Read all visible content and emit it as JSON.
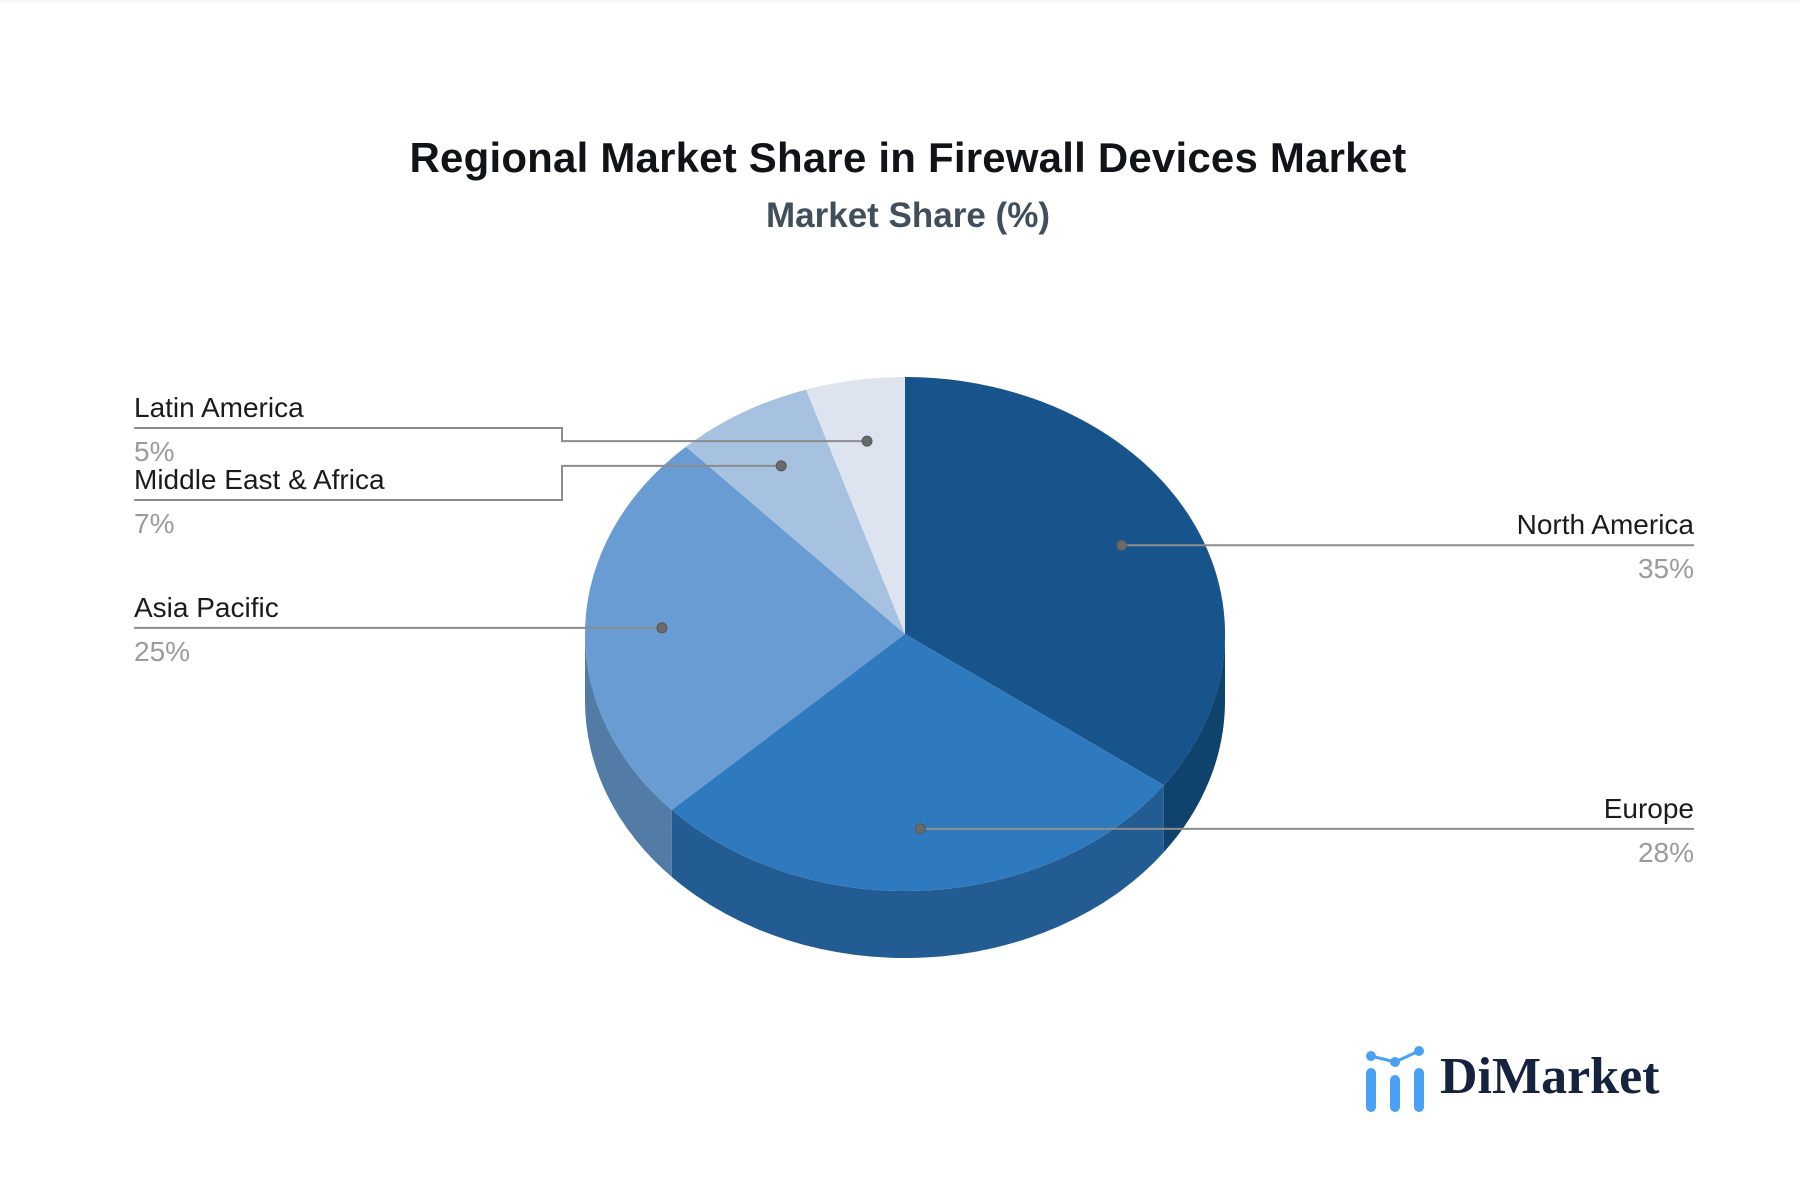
{
  "header": {
    "title": "Regional Market Share in Firewall Devices Market",
    "subtitle": "Market Share (%)"
  },
  "chart_data": {
    "type": "pie",
    "style": "3d",
    "title": "Regional Market Share in Firewall Devices Market",
    "subtitle": "Market Share (%)",
    "unit": "%",
    "direction": "clockwise",
    "start_angle_deg": 0,
    "legend": "none",
    "categories": [
      "North America",
      "Europe",
      "Asia Pacific",
      "Middle East & Africa",
      "Latin America"
    ],
    "values": [
      35,
      28,
      25,
      7,
      5
    ],
    "slices": [
      {
        "label": "North America",
        "value": 35,
        "display": "35%",
        "color": "#17548C",
        "side_color": "#10426E",
        "label_side": "right"
      },
      {
        "label": "Europe",
        "value": 28,
        "display": "28%",
        "color": "#2F7ABF",
        "side_color": "#235C92",
        "label_side": "right"
      },
      {
        "label": "Asia Pacific",
        "value": 25,
        "display": "25%",
        "color": "#689CD2",
        "side_color": "#527BA6",
        "label_side": "left"
      },
      {
        "label": "Middle East & Africa",
        "value": 7,
        "display": "7%",
        "color": "#A6C2E0",
        "side_color": "#8FABC9",
        "label_side": "left"
      },
      {
        "label": "Latin America",
        "value": 5,
        "display": "5%",
        "color": "#DEE4EF",
        "side_color": "#C2CBD9",
        "label_side": "left"
      }
    ],
    "connector_color": "#8C8C8C",
    "label_color": "#1B1B1B",
    "percent_color": "#9B9B9B"
  },
  "branding": {
    "logo_text": "DiMarket",
    "logo_icon": "bar-chart-trend-icon",
    "logo_text_color": "#15233F",
    "logo_icon_color": "#4AA0F5"
  }
}
